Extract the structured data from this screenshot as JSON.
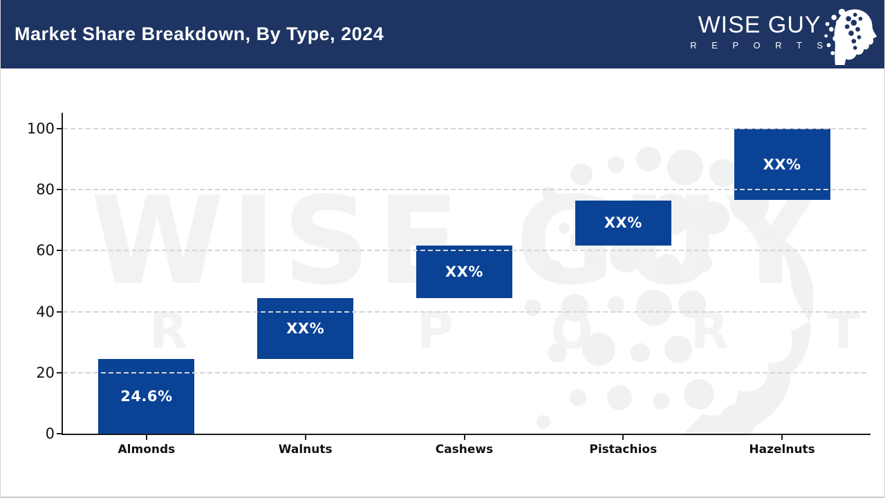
{
  "header": {
    "title": "Market Share Breakdown, By Type, 2024",
    "bg_color": "#1e3563",
    "logo": {
      "line1": "WISE GUY",
      "line2": "R E P O R T S"
    }
  },
  "watermark": {
    "line1": "WISE GUY",
    "line2": "R E P O R T S"
  },
  "chart_data": {
    "type": "bar",
    "variant": "floating-waterfall",
    "title": "Market Share Breakdown, By Type, 2024",
    "categories": [
      "Almonds",
      "Walnuts",
      "Cashews",
      "Pistachios",
      "Hazelnuts"
    ],
    "bars": [
      {
        "category": "Almonds",
        "start": 0,
        "end": 24.6,
        "label": "24.6%"
      },
      {
        "category": "Walnuts",
        "start": 24.6,
        "end": 44.4,
        "label": "XX%"
      },
      {
        "category": "Cashews",
        "start": 44.5,
        "end": 61.7,
        "label": "XX%"
      },
      {
        "category": "Pistachios",
        "start": 61.6,
        "end": 76.5,
        "label": "XX%"
      },
      {
        "category": "Hazelnuts",
        "start": 76.6,
        "end": 100.0,
        "label": "XX%"
      }
    ],
    "xlabel": "",
    "ylabel": "",
    "yticks": [
      0,
      20,
      40,
      60,
      80,
      100
    ],
    "ylim": [
      0,
      105
    ],
    "grid": {
      "axis": "y",
      "style": "dashed",
      "color": "#d6d6d6",
      "drawn_above_bars": true
    },
    "bar_color": "#0a4296",
    "bar_label_color": "#ffffff",
    "legend": null
  }
}
